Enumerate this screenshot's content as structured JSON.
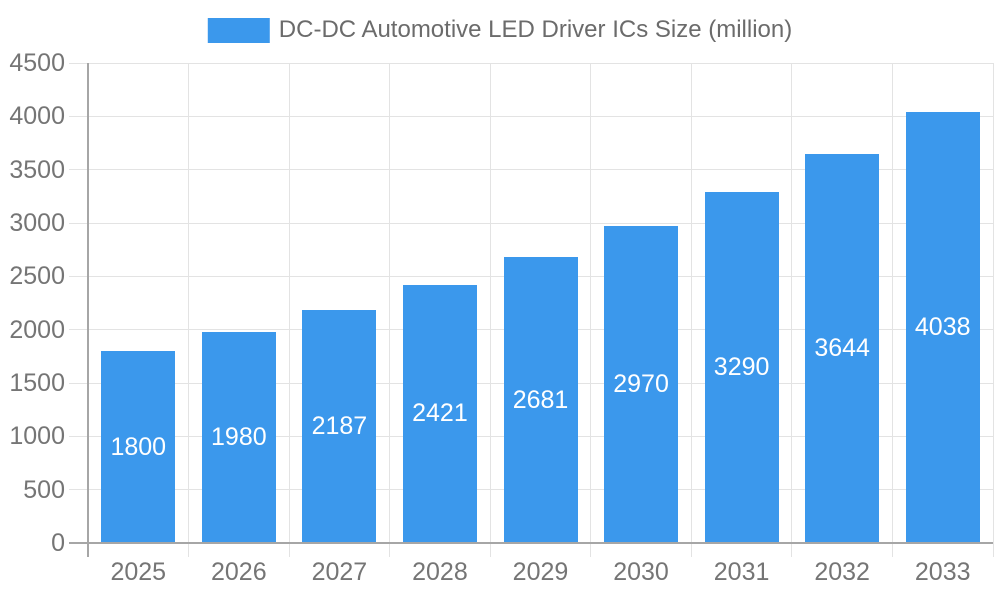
{
  "legend": {
    "label": "DC-DC Automotive LED Driver ICs Size (million)"
  },
  "chart_data": {
    "type": "bar",
    "title": "DC-DC Automotive LED Driver ICs Size (million)",
    "categories": [
      "2025",
      "2026",
      "2027",
      "2028",
      "2029",
      "2030",
      "2031",
      "2032",
      "2033"
    ],
    "values": [
      1800,
      1980,
      2187,
      2421,
      2681,
      2970,
      3290,
      3644,
      4038
    ],
    "xlabel": "",
    "ylabel": "",
    "ylim": [
      0,
      4500
    ],
    "yticks": [
      0,
      500,
      1000,
      1500,
      2000,
      2500,
      3000,
      3500,
      4000,
      4500
    ],
    "grid": true,
    "legend_position": "top",
    "value_labels": "inside-center"
  },
  "colors": {
    "background": "#ffffff",
    "bar": "#3b98ec",
    "grid": "#e3e3e3",
    "axis": "#a6a6a6",
    "tick_label": "#757575",
    "legend_text": "#6b6b6b",
    "bar_label": "#ffffff"
  }
}
